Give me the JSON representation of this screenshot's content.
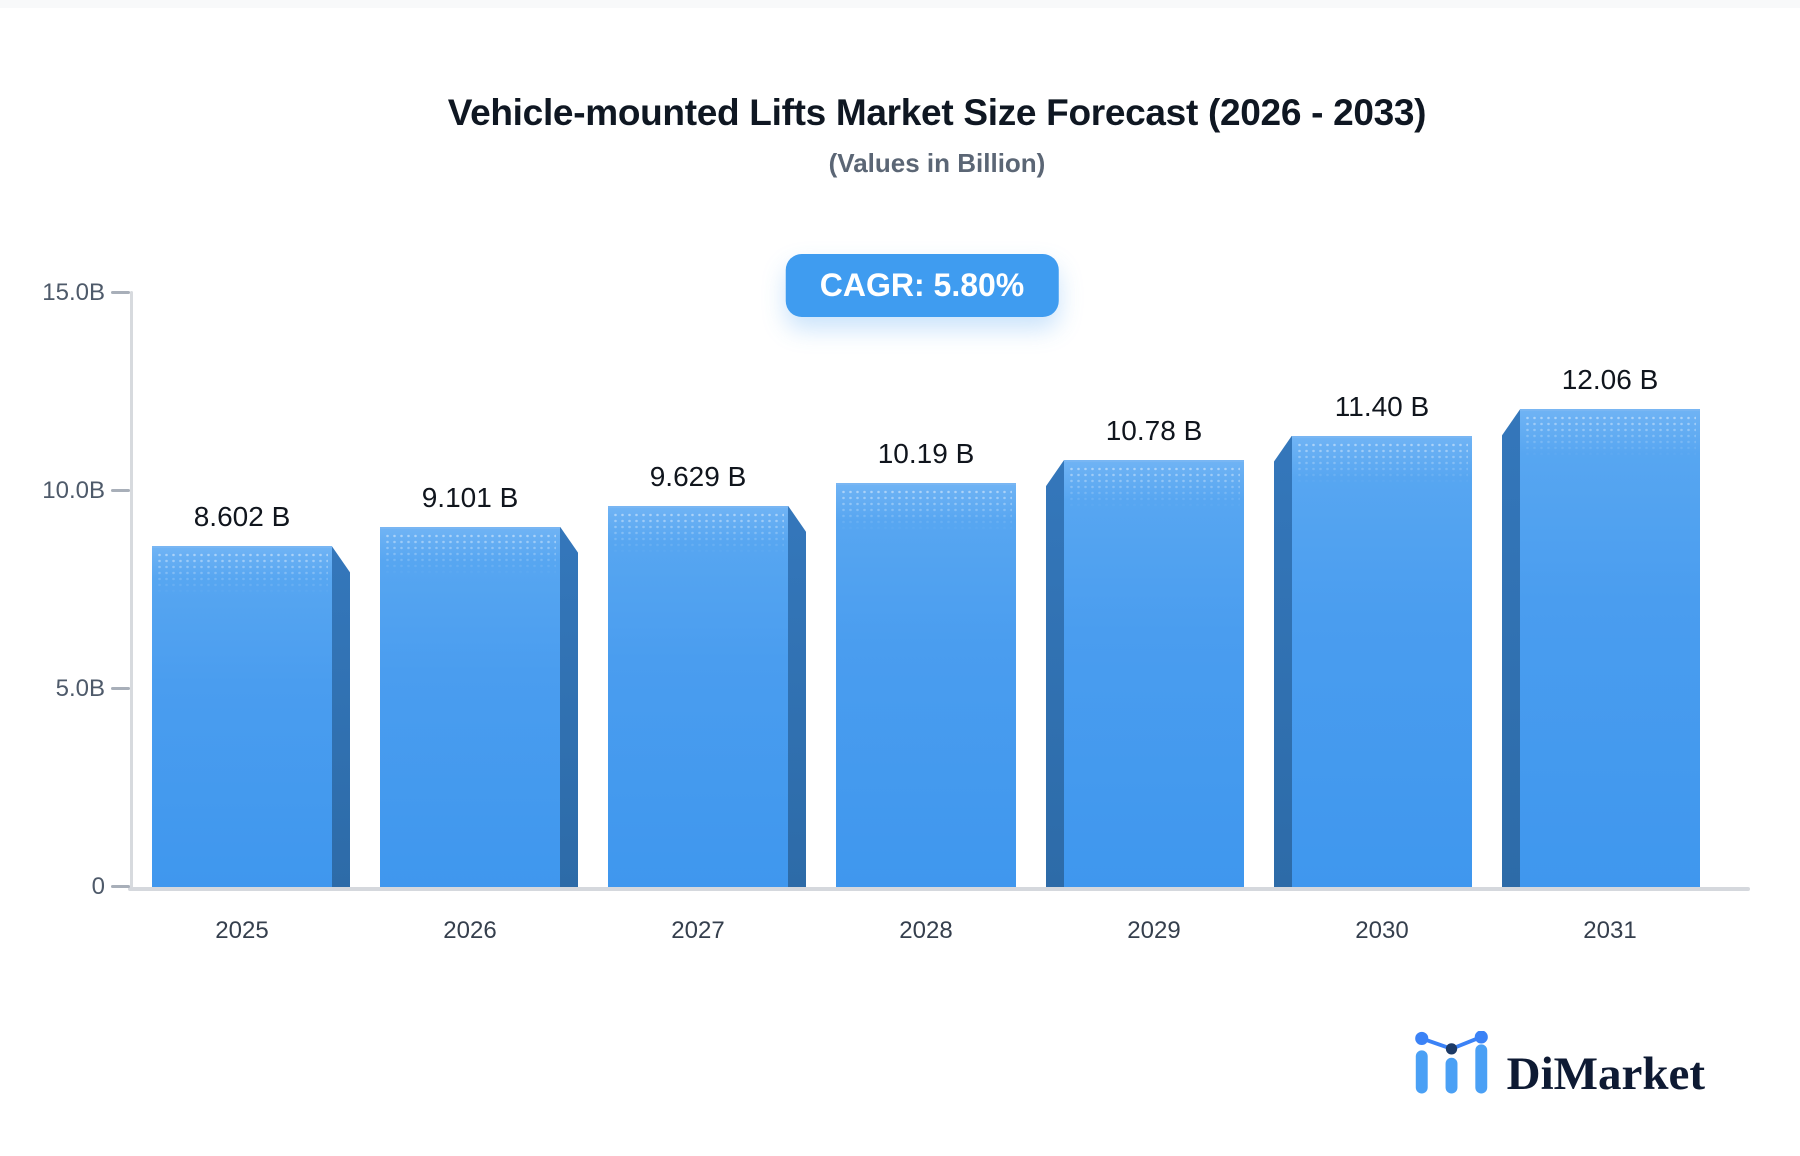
{
  "title": "Vehicle-mounted Lifts Market Size Forecast (2026 - 2033)",
  "subtitle": "(Values in Billion)",
  "badge": {
    "label": "CAGR: 5.80%"
  },
  "chart_data": {
    "type": "bar",
    "title": "Vehicle-mounted Lifts Market Size Forecast (2026 - 2033)",
    "subtitle": "(Values in Billion)",
    "categories": [
      "2025",
      "2026",
      "2027",
      "2028",
      "2029",
      "2030",
      "2031"
    ],
    "values": [
      8.602,
      9.101,
      9.629,
      10.19,
      10.78,
      11.4,
      12.06
    ],
    "value_labels": [
      "8.602 B",
      "9.101 B",
      "9.629 B",
      "10.19 B",
      "10.78 B",
      "11.40 B",
      "12.06 B"
    ],
    "xlabel": "",
    "ylabel": "",
    "ylim": [
      0,
      15
    ],
    "y_ticks": [
      {
        "value": 0,
        "label": "0"
      },
      {
        "value": 5,
        "label": "5.0B"
      },
      {
        "value": 10,
        "label": "10.0B"
      },
      {
        "value": 15,
        "label": "15.0B"
      }
    ],
    "grid": false,
    "legend": false,
    "bar_3d_sides": [
      "right",
      "right",
      "right",
      "none",
      "left",
      "left",
      "left"
    ]
  },
  "colors": {
    "accent": "#3f9cf0",
    "bar_top": "#6fb3f4",
    "bar_bottom": "#3f97ee",
    "bar_side": "#2f6fae",
    "axis_line": "#d7dade",
    "tick_text": "#4e5a6a",
    "title_text": "#0f1722",
    "subtitle_text": "#5b6675"
  },
  "logo": {
    "text": "DiMarket"
  }
}
